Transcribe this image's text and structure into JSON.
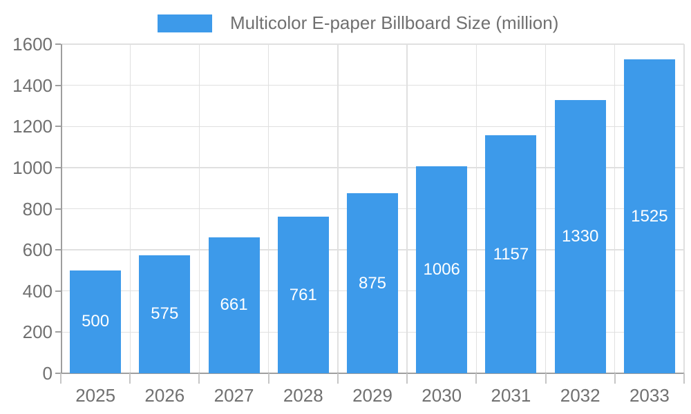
{
  "legend": {
    "label": "Multicolor E-paper Billboard Size (million)"
  },
  "chart_data": {
    "type": "bar",
    "title": "Multicolor E-paper Billboard Size (million)",
    "categories": [
      "2025",
      "2026",
      "2027",
      "2028",
      "2029",
      "2030",
      "2031",
      "2032",
      "2033"
    ],
    "values": [
      500,
      575,
      661,
      761,
      875,
      1006,
      1157,
      1330,
      1525
    ],
    "xlabel": "",
    "ylabel": "",
    "ylim": [
      0,
      1600
    ],
    "ytick_step": 200,
    "grid": true,
    "legend_position": "top",
    "bar_labels_inside": true,
    "colors": {
      "bar": "#3d9aea",
      "grid": "#e0e0e0",
      "axis": "#9e9e9e",
      "x_tick": "#c6c6c6",
      "text": "#707070",
      "bar_label": "#ffffff",
      "background": "#ffffff"
    }
  }
}
